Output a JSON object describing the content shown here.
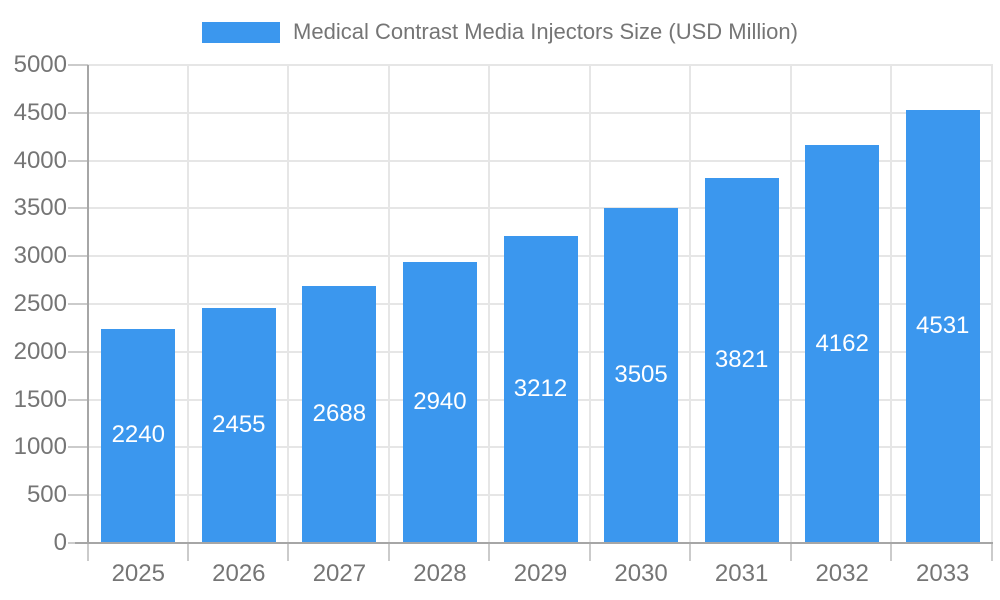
{
  "legend": {
    "label": "Medical Contrast Media Injectors Size (USD Million)"
  },
  "colors": {
    "bar": "#3b97ee",
    "grid_line": "#e6e6e6",
    "tick_line": "#cbcbcb",
    "axis_line": "#a6a6a6",
    "axis_text": "#757575",
    "value_text": "#ffffff",
    "background": "#ffffff"
  },
  "chart_data": {
    "type": "bar",
    "title": "Medical Contrast Media Injectors Size (USD Million)",
    "categories": [
      "2025",
      "2026",
      "2027",
      "2028",
      "2029",
      "2030",
      "2031",
      "2032",
      "2033"
    ],
    "values": [
      2240,
      2455,
      2688,
      2940,
      3212,
      3505,
      3821,
      4162,
      4531
    ],
    "series_name": "Medical Contrast Media Injectors Size (USD Million)",
    "xlabel": "",
    "ylabel": "",
    "ylim": [
      0,
      5000
    ],
    "ytick_step": 500,
    "yticks": [
      0,
      500,
      1000,
      1500,
      2000,
      2500,
      3000,
      3500,
      4000,
      4500,
      5000
    ],
    "grid": true,
    "legend_position": "top-center",
    "value_labels": "inside-center",
    "bar_color": "#3b97ee"
  }
}
